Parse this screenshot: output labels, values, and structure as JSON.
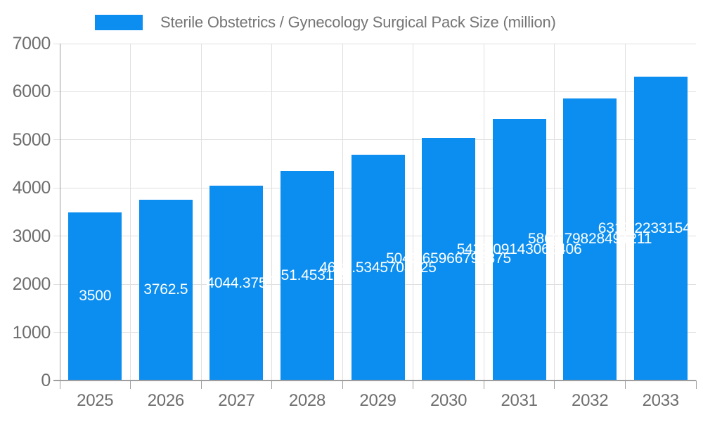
{
  "legend": {
    "label": "Sterile Obstetrics / Gynecology Surgical Pack Size (million)",
    "swatch_color": "#0c8ef0",
    "text_color": "#757575"
  },
  "chart_data": {
    "type": "bar",
    "title": "Sterile Obstetrics / Gynecology Surgical Pack Size (million)",
    "categories": [
      "2025",
      "2026",
      "2027",
      "2028",
      "2029",
      "2030",
      "2031",
      "2032",
      "2033"
    ],
    "values": [
      3500,
      3762.5,
      4044.375,
      4351.453125,
      4684.5345703125,
      5046.65966796875,
      5436.09143066406,
      5860.79828491211,
      6319.22331542969
    ],
    "data_labels": [
      "3500",
      "3762.5",
      "4044.375",
      "4351.453125",
      "4684.5345703125",
      "5046.65966796875",
      "5436.09143066406",
      "5860.79828491211",
      "6319.22331542969"
    ],
    "xlabel": "",
    "ylabel": "",
    "ylim": [
      0,
      7000
    ],
    "yticks": [
      0,
      1000,
      2000,
      3000,
      4000,
      5000,
      6000,
      7000
    ],
    "grid": true,
    "legend_position": "top",
    "bar_color": "#0c8ef0",
    "data_label_color": "#ffffff",
    "axis_text_color": "#6e6e6e",
    "gridline_color": "#e0e0e0",
    "axis_line_color": "#9e9e9e"
  }
}
